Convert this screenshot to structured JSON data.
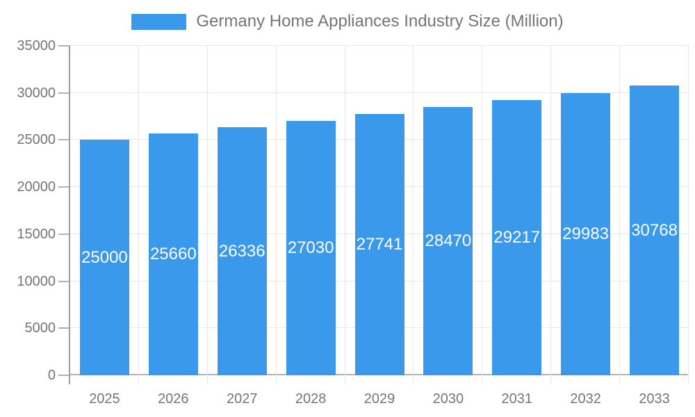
{
  "chart_data": {
    "type": "bar",
    "title": "Germany Home Appliances Industry Size (Million)",
    "categories": [
      "2025",
      "2026",
      "2027",
      "2028",
      "2029",
      "2030",
      "2031",
      "2032",
      "2033"
    ],
    "values": [
      25000,
      25660,
      26336,
      27030,
      27741,
      28470,
      29217,
      29983,
      30768
    ],
    "series": [
      {
        "name": "Germany Home Appliances Industry Size (Million)",
        "values": [
          25000,
          25660,
          26336,
          27030,
          27741,
          28470,
          29217,
          29983,
          30768
        ]
      }
    ],
    "xlabel": "",
    "ylabel": "",
    "ylim": [
      0,
      35000
    ],
    "ytick_step": 5000,
    "yticks": [
      0,
      5000,
      10000,
      15000,
      20000,
      25000,
      30000,
      35000
    ],
    "grid": true,
    "legend_position": "top",
    "bar_color": "#3b99ec",
    "value_label_color": "#ffffff",
    "text_color": "#757575",
    "gridline_color": "#e6e6e6",
    "baseline_color": "#b3b3b3",
    "axis_line_color": "#9e9e9e",
    "tick_color": "#b0b0b0"
  }
}
